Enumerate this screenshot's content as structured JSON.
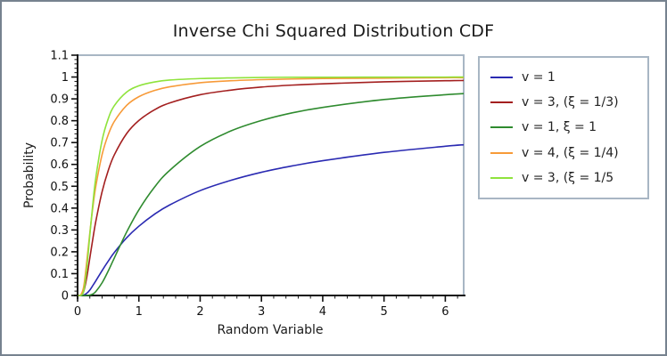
{
  "window": {
    "background_color": "#ffffff",
    "outer_border_color": "#76828F"
  },
  "chart_data": {
    "type": "line",
    "title": "Inverse Chi Squared Distribution CDF",
    "xlabel": "Random Variable",
    "ylabel": "Probability",
    "xlim": [
      0,
      6.3
    ],
    "ylim": [
      0,
      1.1
    ],
    "grid": false,
    "legend_position": "right-outside",
    "x_tick_labels": [
      "0",
      "1",
      "2",
      "3",
      "4",
      "5",
      "6"
    ],
    "y_tick_labels": [
      "0",
      "0.1",
      "0.2",
      "0.3",
      "0.4",
      "0.5",
      "0.6",
      "0.7",
      "0.8",
      "0.9",
      "1",
      "1.1"
    ],
    "x_major_step": 1,
    "x_minor_step": 0.2,
    "y_major_step": 0.1,
    "y_minor_step": 0.02,
    "x": [
      0.02,
      0.05,
      0.1,
      0.15,
      0.2,
      0.25,
      0.3,
      0.4,
      0.5,
      0.6,
      0.8,
      1.0,
      1.25,
      1.5,
      2.0,
      2.5,
      3.0,
      3.5,
      4.0,
      5.0,
      6.0,
      6.3
    ],
    "series": [
      {
        "name": "v = 1",
        "color": "#2A2AB2",
        "values": [
          0,
          0,
          0.002,
          0.01,
          0.025,
          0.046,
          0.068,
          0.114,
          0.157,
          0.197,
          0.264,
          0.317,
          0.371,
          0.414,
          0.48,
          0.527,
          0.564,
          0.593,
          0.617,
          0.655,
          0.683,
          0.69
        ]
      },
      {
        "name": "v = 3, (ξ = 1/3)",
        "color": "#A31F1F",
        "values": [
          0,
          0,
          0.019,
          0.083,
          0.172,
          0.261,
          0.343,
          0.475,
          0.572,
          0.644,
          0.741,
          0.801,
          0.849,
          0.881,
          0.919,
          0.94,
          0.954,
          0.963,
          0.969,
          0.978,
          0.983,
          0.984
        ]
      },
      {
        "name": "v = 1, ξ = 1",
        "color": "#2F8B2F",
        "values": [
          0,
          0,
          0,
          0,
          0.002,
          0.007,
          0.019,
          0.058,
          0.112,
          0.172,
          0.29,
          0.392,
          0.494,
          0.572,
          0.682,
          0.753,
          0.801,
          0.836,
          0.861,
          0.897,
          0.919,
          0.924
        ]
      },
      {
        "name": "v = 4, (ξ = 1/4)",
        "color": "#F79A38",
        "values": [
          0,
          0.001,
          0.04,
          0.155,
          0.287,
          0.406,
          0.504,
          0.645,
          0.736,
          0.797,
          0.87,
          0.91,
          0.938,
          0.955,
          0.974,
          0.983,
          0.988,
          0.991,
          0.993,
          0.995,
          0.997,
          0.997
        ]
      },
      {
        "name": "v = 3, (ξ = 1/5",
        "color": "#8FE33C",
        "values": [
          0,
          0,
          0.02,
          0.125,
          0.277,
          0.423,
          0.544,
          0.71,
          0.809,
          0.869,
          0.931,
          0.96,
          0.977,
          0.986,
          0.993,
          0.996,
          0.998,
          0.999,
          0.999,
          0.9995,
          0.9997,
          0.9998
        ]
      }
    ],
    "style": {
      "axis_color": "#111111",
      "tick_label_color": "#111111",
      "plot_border_color": "#A8B6C4",
      "legend_border_color": "#A8B6C4",
      "curve_width": 1.6
    }
  }
}
